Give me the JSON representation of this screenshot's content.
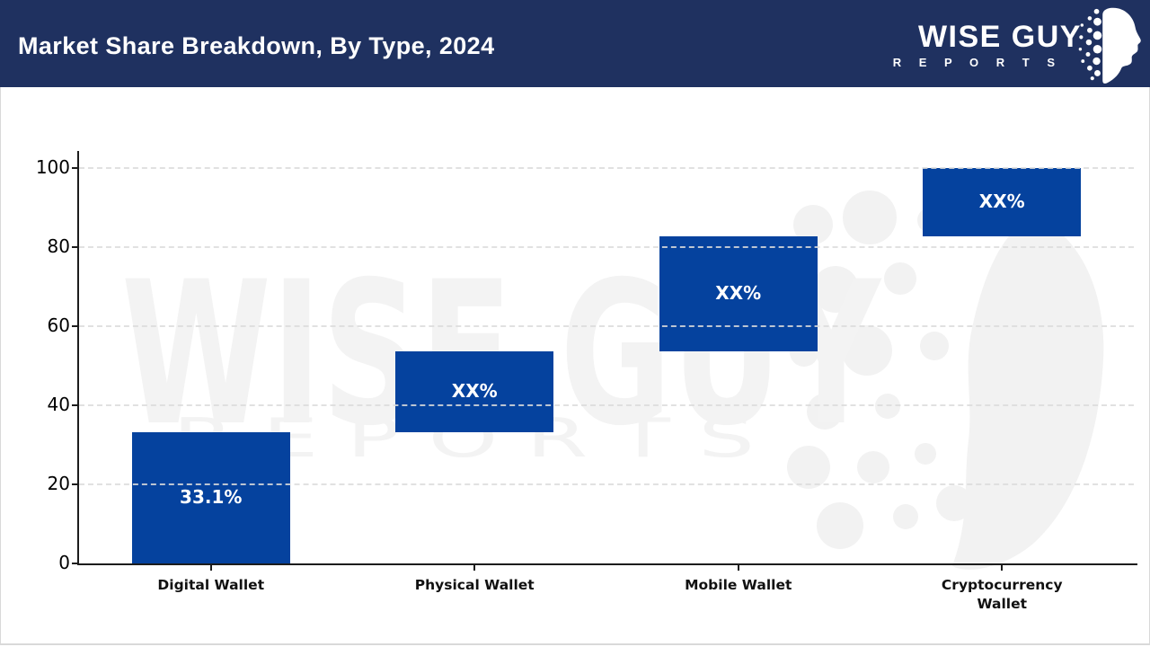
{
  "header": {
    "title": "Market Share Breakdown, By Type, 2024",
    "brand_name": "WISE GUY",
    "brand_sub": "R E P O R T S",
    "bg_color": "#1F3160"
  },
  "watermark": {
    "line1": "WISE GUY",
    "line2": "R E P O R T S"
  },
  "chart_data": {
    "type": "bar",
    "subtype": "waterfall",
    "title": "Market Share Breakdown, By Type, 2024",
    "categories": [
      "Digital Wallet",
      "Physical Wallet",
      "Mobile Wallet",
      "Cryptocurrency Wallet"
    ],
    "segments": [
      {
        "category": "Digital Wallet",
        "start": 0,
        "end": 33.1,
        "label": "33.1%"
      },
      {
        "category": "Physical Wallet",
        "start": 33.1,
        "end": 53.7,
        "label": "XX%"
      },
      {
        "category": "Mobile Wallet",
        "start": 53.7,
        "end": 82.8,
        "label": "XX%"
      },
      {
        "category": "Cryptocurrency Wallet",
        "start": 82.8,
        "end": 100,
        "label": "XX%"
      }
    ],
    "xlabel": "",
    "ylabel": "",
    "ylim": [
      0,
      100
    ],
    "yticks": [
      0,
      20,
      40,
      60,
      80,
      100
    ],
    "grid": "dashed-horizontal",
    "legend": "none",
    "bar_color": "#05429E",
    "bar_label_color": "#ffffff"
  }
}
